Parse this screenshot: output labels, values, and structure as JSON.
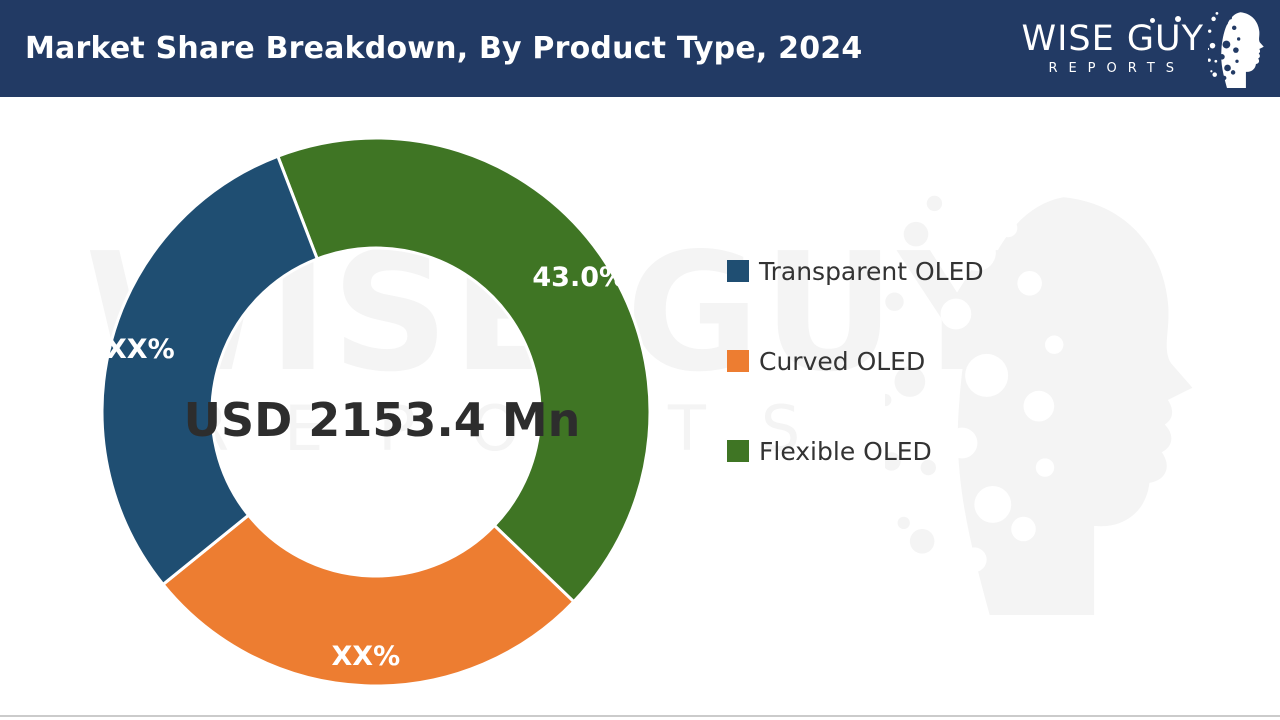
{
  "header": {
    "title": "Market Share Breakdown, By Product Type, 2024",
    "brand": {
      "line1": "WISE GUY",
      "line2": "REPORTS",
      "face_icon": "wiseguy-face-icon"
    },
    "background_color": "#223A64"
  },
  "watermark": {
    "line1": "WISE GUY",
    "line2": "REPORTS",
    "face_icon": "wiseguy-face-icon",
    "color": "#F4F4F4"
  },
  "legend": {
    "items": [
      {
        "label": "Transparent OLED",
        "color": "#1F4E72"
      },
      {
        "label": "Curved OLED",
        "color": "#ED7D31"
      },
      {
        "label": "Flexible OLED",
        "color": "#3F7524"
      }
    ]
  },
  "chart_data": {
    "type": "pie",
    "subtype": "donut",
    "title": "Market Share Breakdown, By Product Type, 2024",
    "center_label": "USD 2153.4 Mn",
    "categories": [
      "Transparent OLED",
      "Curved OLED",
      "Flexible OLED"
    ],
    "series": [
      {
        "name": "Transparent OLED",
        "value": 30,
        "display_label": "XX%",
        "color": "#1F4E72"
      },
      {
        "name": "Curved OLED",
        "value": 27,
        "display_label": "XX%",
        "color": "#ED7D31"
      },
      {
        "name": "Flexible OLED",
        "value": 43,
        "display_label": "43.0%",
        "color": "#3F7524"
      }
    ],
    "slices_draw_order": [
      {
        "name": "Flexible OLED",
        "value": 43,
        "display_label": "43.0%",
        "color": "#3F7524"
      },
      {
        "name": "Curved OLED",
        "value": 27,
        "display_label": "XX%",
        "color": "#ED7D31"
      },
      {
        "name": "Transparent OLED",
        "value": 30,
        "display_label": "XX%",
        "color": "#1F4E72"
      }
    ],
    "start_angle_deg": 111,
    "direction": "clockwise",
    "legend_position": "right",
    "label_color": "#ffffff",
    "center_label_color": "#2D2D2D"
  }
}
